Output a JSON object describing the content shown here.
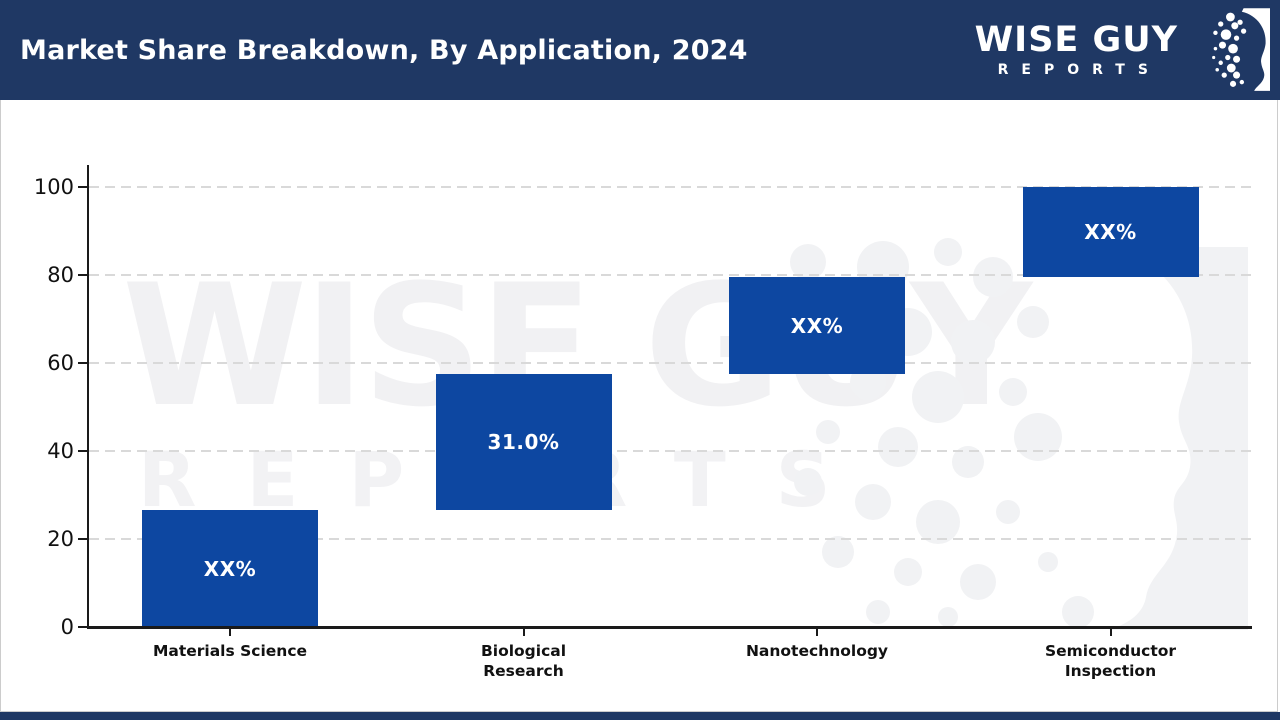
{
  "header": {
    "title": "Market Share Breakdown, By Application, 2024",
    "bg_color": "#1f3864",
    "logo": {
      "wordmark": "WISE GUY",
      "subtitle": "REPORTS"
    }
  },
  "watermark": {
    "wordmark": "WISE GUY",
    "subtitle": "REPORTS"
  },
  "chart_data": {
    "type": "bar",
    "subtype": "waterfall",
    "title": "Market Share Breakdown, By Application, 2024",
    "categories": [
      "Materials Science",
      "Biological Research",
      "Nanotechnology",
      "Semiconductor Inspection"
    ],
    "categories_display": [
      [
        "Materials Science"
      ],
      [
        "Biological",
        "Research"
      ],
      [
        "Nanotechnology"
      ],
      [
        "Semiconductor",
        "Inspection"
      ]
    ],
    "segments": [
      {
        "category": "Materials Science",
        "start": 0,
        "end": 26.5,
        "value": 26.5,
        "label": "XX%"
      },
      {
        "category": "Biological Research",
        "start": 26.5,
        "end": 57.5,
        "value": 31.0,
        "label": "31.0%"
      },
      {
        "category": "Nanotechnology",
        "start": 57.5,
        "end": 79.5,
        "value": 22.0,
        "label": "XX%"
      },
      {
        "category": "Semiconductor Inspection",
        "start": 79.5,
        "end": 100,
        "value": 20.5,
        "label": "XX%"
      }
    ],
    "xlabel": "",
    "ylabel": "",
    "ylim": [
      0,
      100
    ],
    "yticks": [
      0,
      20,
      40,
      60,
      80,
      100
    ],
    "bar_color": "#0d47a1",
    "grid": "horizontal-dashed",
    "legend": "none"
  }
}
